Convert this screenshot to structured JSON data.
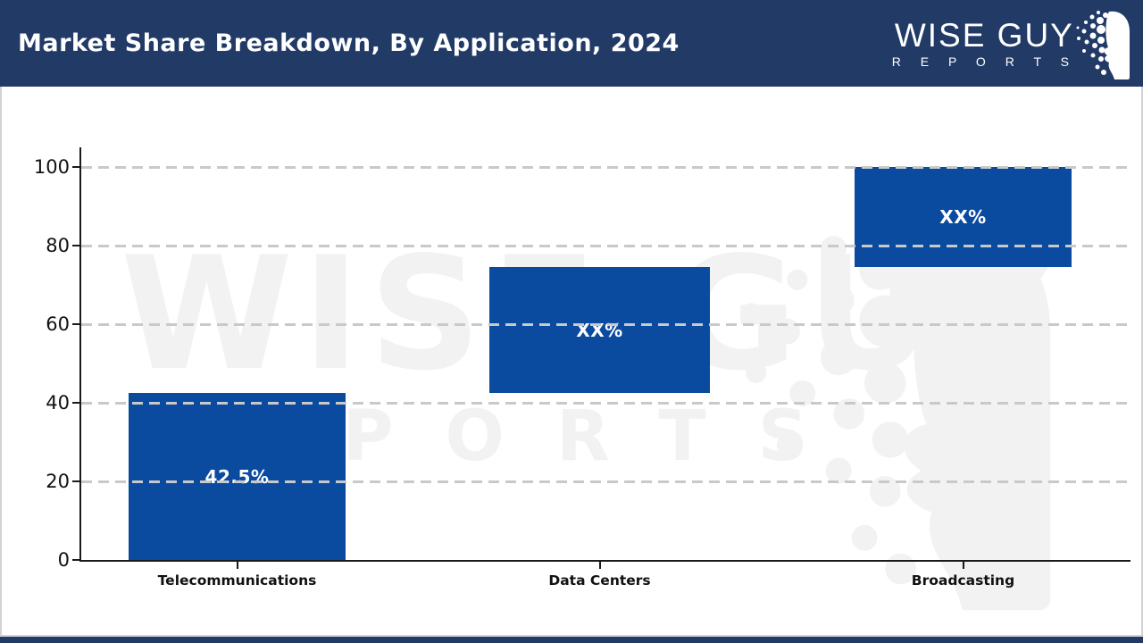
{
  "header": {
    "title": "Market Share Breakdown, By Application, 2024",
    "logo": {
      "line1": "WISE GUY",
      "line2": "R E P O R T S"
    }
  },
  "watermark": {
    "line1": "WISE GUY",
    "line2": "REPORTS"
  },
  "colors": {
    "header_bg": "#213a66",
    "bar": "#0b4b9f",
    "grid": "#c9c9c9",
    "axis": "#1a1a1a",
    "bar_label_text": "#ffffff",
    "tick_text": "#111111",
    "watermark": "#f2f2f2"
  },
  "chart_data": {
    "type": "bar",
    "subtype": "waterfall",
    "title": "Market Share Breakdown, By Application, 2024",
    "categories": [
      "Telecommunications",
      "Data Centers",
      "Broadcasting"
    ],
    "bars": [
      {
        "category": "Telecommunications",
        "start": 0,
        "end": 42.5,
        "label": "42.5%"
      },
      {
        "category": "Data Centers",
        "start": 42.5,
        "end": 74.5,
        "label": "XX%"
      },
      {
        "category": "Broadcasting",
        "start": 74.5,
        "end": 100,
        "label": "XX%"
      }
    ],
    "yticks": [
      0,
      20,
      40,
      60,
      80,
      100
    ],
    "ylim": [
      0,
      105
    ],
    "grid": "horizontal-dashed",
    "legend": "none",
    "bar_color": "#0b4b9f",
    "bar_label_color": "#ffffff"
  }
}
